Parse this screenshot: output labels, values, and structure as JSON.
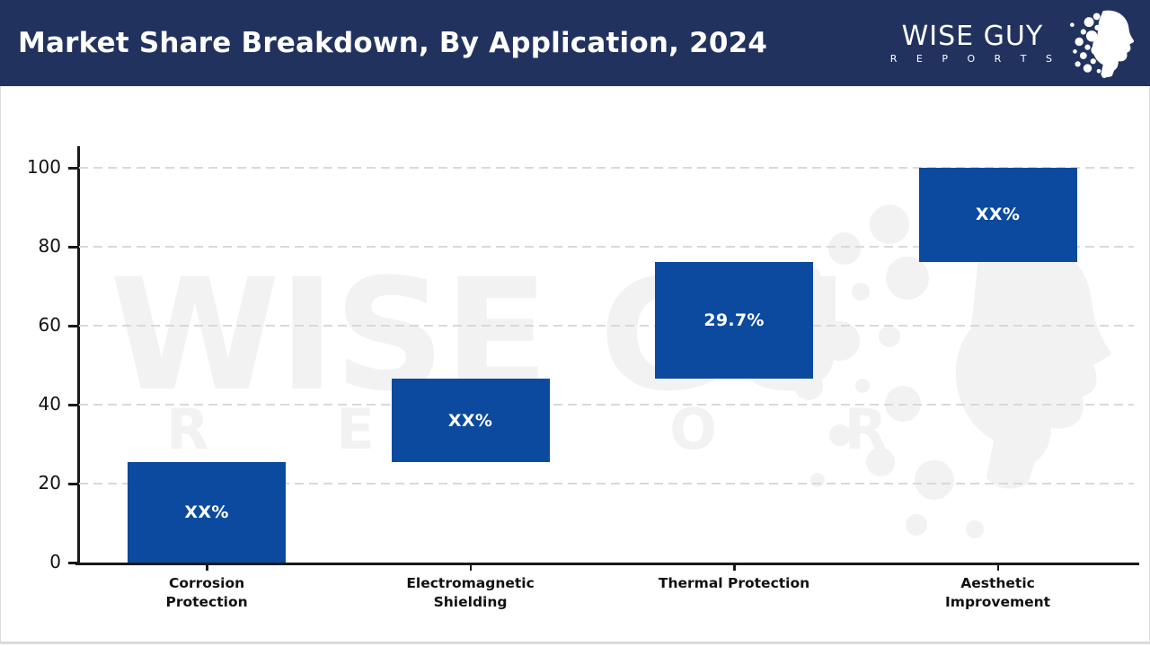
{
  "header": {
    "title": "Market Share Breakdown, By Application, 2024",
    "logo": {
      "name": "WISE GUY",
      "sub": "R E P O R T S"
    }
  },
  "watermark": {
    "line1": "WISE GU",
    "line2": "R E P O R T S"
  },
  "colors": {
    "header_bg": "#22325f",
    "bar": "#0b4a9e",
    "grid": "#d9d9d9",
    "axis": "#1a1a1a",
    "watermark": "#f2f2f2",
    "bar_label": "#ffffff"
  },
  "chart_data": {
    "type": "bar",
    "subtype": "waterfall",
    "title": "Market Share Breakdown, By Application, 2024",
    "xlabel": "",
    "ylabel": "",
    "ylim": [
      0,
      100
    ],
    "yticks": [
      0,
      20,
      40,
      60,
      80,
      100
    ],
    "grid": "horizontal-dashed",
    "legend": "none",
    "categories": [
      "Corrosion Protection",
      "Electromagnetic Shielding",
      "Thermal Protection",
      "Aesthetic Improvement"
    ],
    "segments": [
      {
        "category": "Corrosion Protection",
        "lines": [
          "Corrosion",
          "Protection"
        ],
        "start": 0,
        "end": 25.4,
        "value": 25.4,
        "label": "XX%"
      },
      {
        "category": "Electromagnetic Shielding",
        "lines": [
          "Electromagnetic",
          "Shielding"
        ],
        "start": 25.4,
        "end": 46.5,
        "value": 21.1,
        "label": "XX%"
      },
      {
        "category": "Thermal Protection",
        "lines": [
          "Thermal Protection"
        ],
        "start": 46.5,
        "end": 76.2,
        "value": 29.7,
        "label": "29.7%"
      },
      {
        "category": "Aesthetic Improvement",
        "lines": [
          "Aesthetic",
          "Improvement"
        ],
        "start": 76.2,
        "end": 100,
        "value": 23.8,
        "label": "XX%"
      }
    ]
  }
}
